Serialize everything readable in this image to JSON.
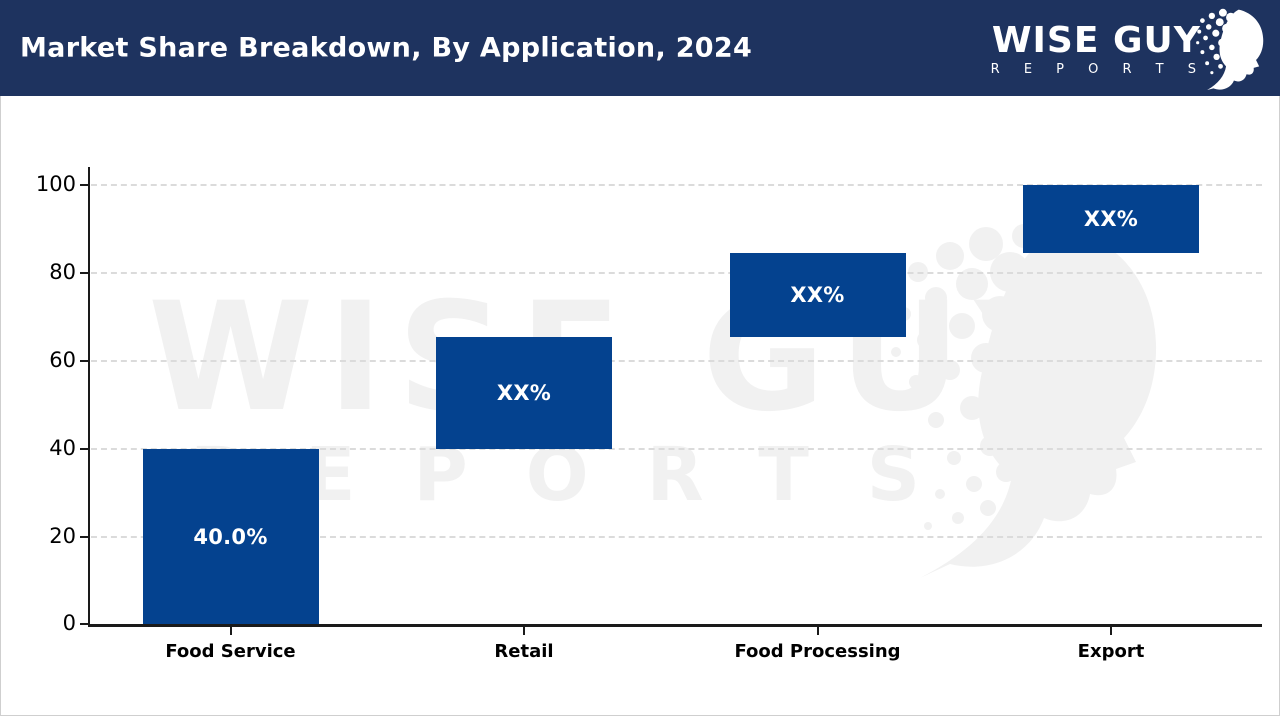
{
  "header": {
    "title": "Market Share Breakdown, By Application, 2024",
    "logo": {
      "name_line": "WISE GUY",
      "reports_line": "R E P O R T S"
    }
  },
  "watermark": {
    "line1": "WISE GUY",
    "line2": "REPORTS"
  },
  "chart_data": {
    "type": "bar",
    "variant": "waterfall-market-share",
    "title": "Market Share Breakdown, By Application, 2024",
    "categories": [
      "Food Service",
      "Retail",
      "Food Processing",
      "Export"
    ],
    "segments": [
      {
        "category": "Food Service",
        "start": 0,
        "end": 40,
        "value_label": "40.0%"
      },
      {
        "category": "Retail",
        "start": 40,
        "end": 65.5,
        "value_label": "XX%"
      },
      {
        "category": "Food Processing",
        "start": 65.5,
        "end": 84.5,
        "value_label": "XX%"
      },
      {
        "category": "Export",
        "start": 84.5,
        "end": 100,
        "value_label": "XX%"
      }
    ],
    "yticks": [
      0,
      20,
      40,
      60,
      80,
      100
    ],
    "ylim": [
      0,
      105
    ],
    "xlabel": "",
    "ylabel": "",
    "grid": "horizontal-dashed",
    "legend": "none",
    "bar_color": "#04428f",
    "bar_label_color": "#ffffff"
  },
  "colors": {
    "header_bg": "#1e335f",
    "watermark": "#f1f1f1",
    "axis": "#1a1a1a",
    "gridline": "#dbdbdb",
    "panel_border": "#cfcfcf"
  }
}
